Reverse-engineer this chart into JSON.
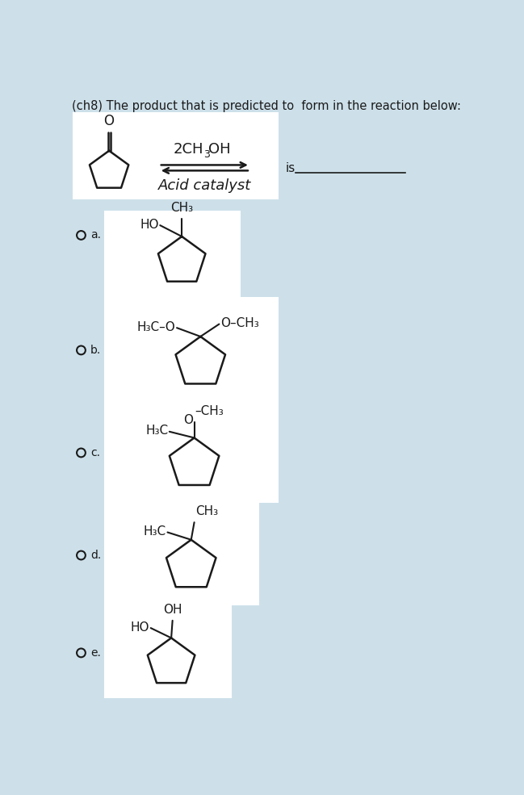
{
  "background_color": "#cde0ea",
  "title": "(ch8) The product that is predicted to  form in the reaction below:",
  "title_fontsize": 10.5,
  "options": [
    "a.",
    "b.",
    "c.",
    "d.",
    "e."
  ],
  "reaction_reagent_top": "2CH",
  "reaction_reagent_sub": "3",
  "reaction_reagent_end": "OH",
  "reaction_condition": "Acid catalyst",
  "white_box_color": "#ffffff",
  "line_color": "#1a1a1a",
  "text_color": "#1a1a1a",
  "orange_color": "#cc5500",
  "fig_width": 6.49,
  "fig_height": 9.85,
  "dpi": 100
}
